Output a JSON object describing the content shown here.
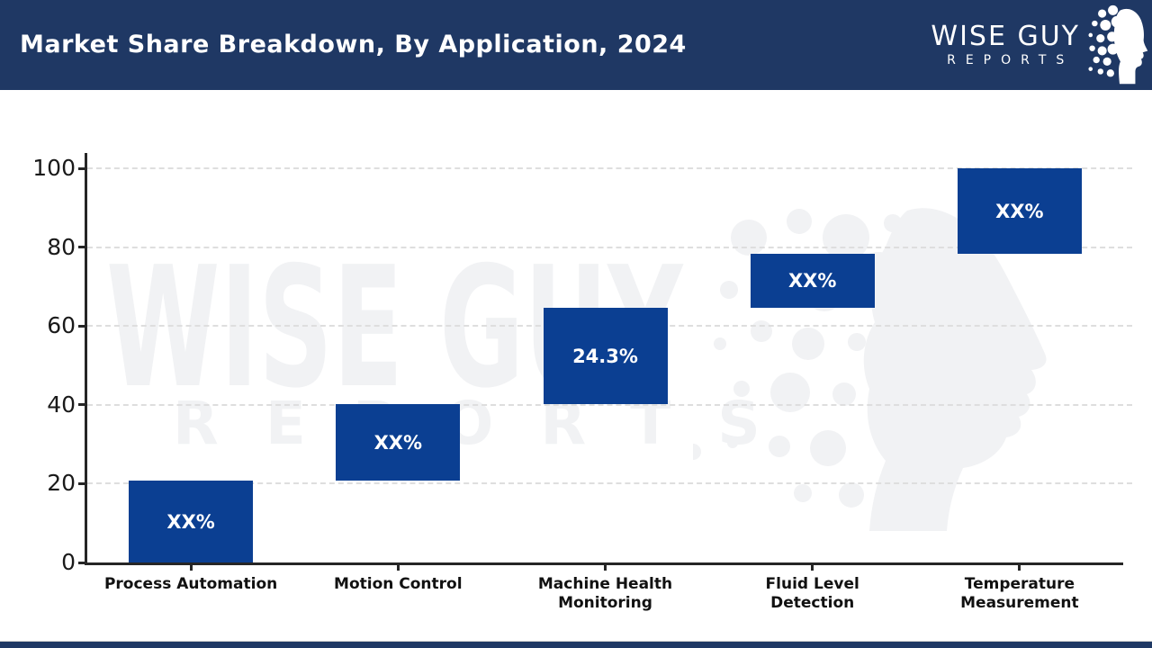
{
  "header": {
    "title": "Market Share Breakdown, By Application, 2024",
    "logo": {
      "brand": "WISE GUY",
      "sub": "REPORTS"
    }
  },
  "watermark": {
    "brand": "WISE GUY",
    "sub": "REPORTS"
  },
  "theme": {
    "header_bg": "#1f3864",
    "bar_color": "#0b3f92",
    "watermark_color": "#f1f2f4",
    "axis_color": "#262626",
    "grid_color": "#dedede",
    "text_color": "#1a1a1a",
    "title_color": "#ffffff"
  },
  "chart_data": {
    "type": "bar",
    "subtype": "waterfall",
    "title": "Market Share Breakdown, By Application, 2024",
    "categories": [
      "Process Automation",
      "Motion Control",
      "Machine Health\nMonitoring",
      "Fluid Level\nDetection",
      "Temperature\nMeasurement"
    ],
    "segments": [
      {
        "category": "Process Automation",
        "start": 0,
        "end": 20.7,
        "value": 20.7,
        "label": "XX%"
      },
      {
        "category": "Motion Control",
        "start": 20.7,
        "end": 40.2,
        "value": 19.5,
        "label": "XX%"
      },
      {
        "category": "Machine Health Monitoring",
        "start": 40.2,
        "end": 64.5,
        "value": 24.3,
        "label": "24.3%"
      },
      {
        "category": "Fluid Level Detection",
        "start": 64.5,
        "end": 78.2,
        "value": 13.7,
        "label": "XX%"
      },
      {
        "category": "Temperature Measurement",
        "start": 78.2,
        "end": 100,
        "value": 21.8,
        "label": "XX%"
      }
    ],
    "ylim": [
      0,
      100
    ],
    "yticks": [
      0,
      20,
      40,
      60,
      80,
      100
    ],
    "xlabel": "",
    "ylabel": "",
    "grid": "horizontal-dashed",
    "legend": "none",
    "bar_label_color": "#ffffff"
  }
}
